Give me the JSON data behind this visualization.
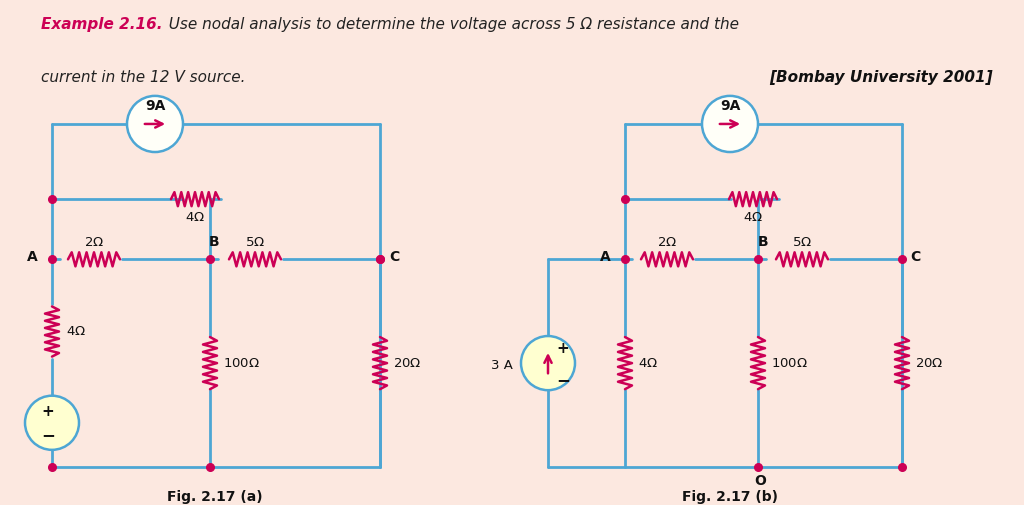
{
  "header_bg": "#fce8e0",
  "diagram_bg": "#cce0df",
  "wire_color": "#4da6d4",
  "resistor_color": "#cc0055",
  "node_color": "#cc0055",
  "title_bold": "Example 2.16.",
  "title_rest": "  Use nodal analysis to determine the voltage across 5 Ω resistance and the",
  "title_line2": "current in the 12 V source.",
  "title_right": "[Bombay University 2001]",
  "fig_label_a": "Fig. 2.17 (a)",
  "fig_label_b": "Fig. 2.17 (b)"
}
